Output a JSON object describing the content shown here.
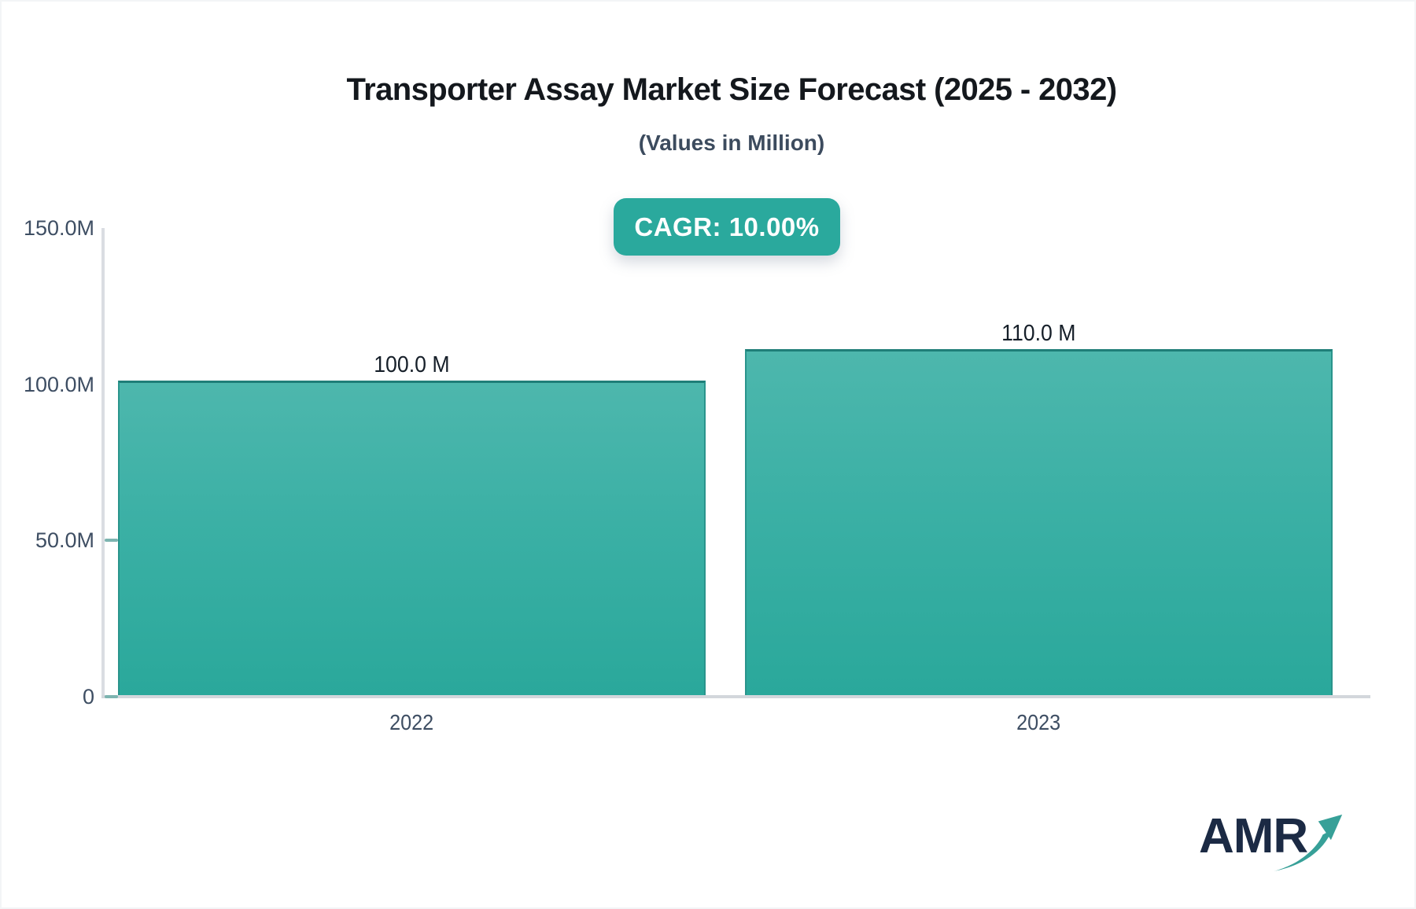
{
  "header": {
    "title": "Transporter Assay Market Size Forecast (2025 - 2032)",
    "subtitle": "(Values in Million)",
    "cagr_badge": "CAGR: 10.00%"
  },
  "chart_data": {
    "type": "bar",
    "title": "Transporter Assay Market Size Forecast (2025 - 2032)",
    "subtitle": "(Values in Million)",
    "cagr_label": "CAGR: 10.00%",
    "categories": [
      "2022",
      "2023"
    ],
    "values": [
      100.0,
      110.0
    ],
    "value_labels": [
      "100.0 M",
      "110.0 M"
    ],
    "xlabel": "",
    "ylabel": "",
    "ylim": [
      0,
      150
    ],
    "yticks": [
      {
        "value": 150,
        "label": "150.0M",
        "dash": false
      },
      {
        "value": 100,
        "label": "100.0M",
        "dash": false
      },
      {
        "value": 50,
        "label": "50.0M",
        "dash": true
      },
      {
        "value": 0,
        "label": "0",
        "dash": true
      }
    ],
    "grid": false,
    "legend": false,
    "bar_colors": {
      "top": "#4db7ad",
      "bottom": "#2aa89b",
      "border": "#1f7e78"
    }
  },
  "branding": {
    "logo_text": "AMR"
  },
  "colors": {
    "accent": "#2aa89c",
    "badge_bg": "#2aa99d",
    "badge_text": "#ffffff",
    "title_text": "#14181d",
    "subtitle_text": "#3c4b5e",
    "axis_label": "#3e4e63",
    "value_label": "#161f29",
    "axis_line": "#d7dade",
    "tick_dash": "#7db4b0",
    "logo_navy": "#1b2a44",
    "logo_arrow": "#37a098"
  }
}
